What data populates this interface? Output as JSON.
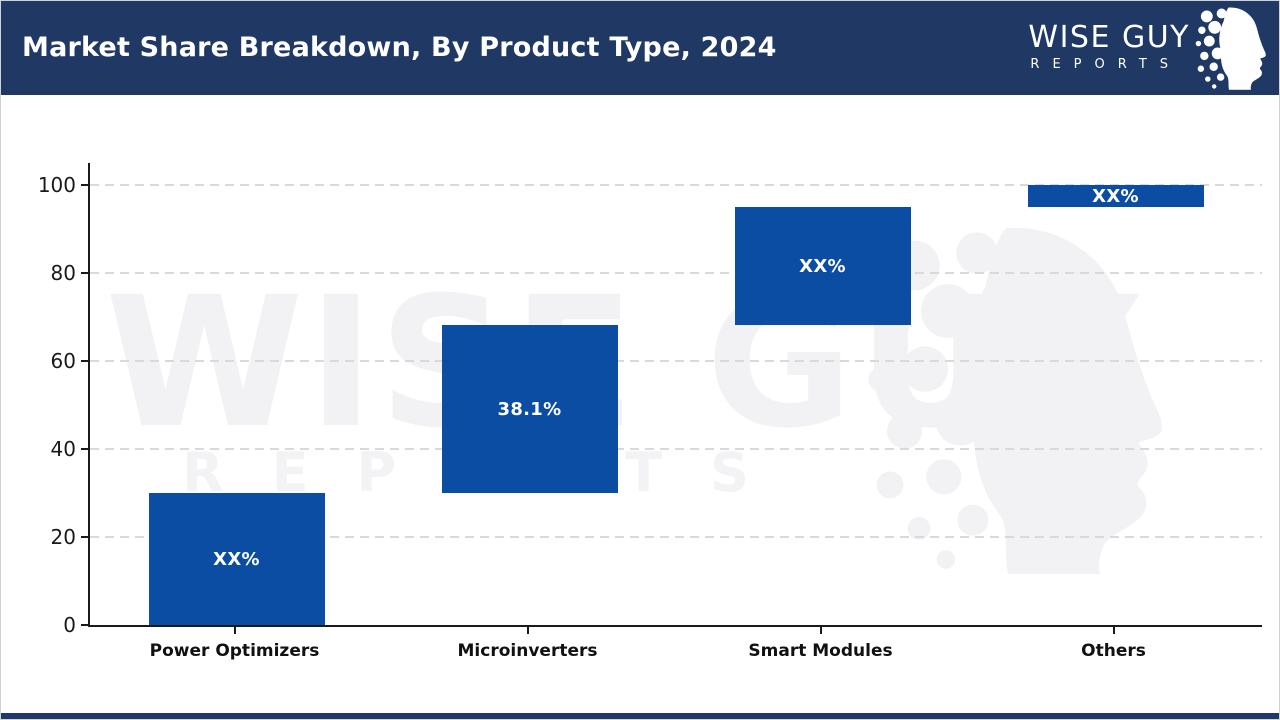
{
  "header": {
    "title": "Market Share Breakdown, By Product Type, 2024",
    "logo": {
      "name": "WISE GUY",
      "sub": "REPORTS"
    }
  },
  "watermark": {
    "name": "WISE GUY",
    "sub": "REPORTS"
  },
  "chart_data": {
    "type": "bar",
    "variant": "waterfall-floating-bars",
    "title": "Market Share Breakdown, By Product Type, 2024",
    "categories": [
      "Power Optimizers",
      "Microinverters",
      "Smart Modules",
      "Others"
    ],
    "series": [
      {
        "name": "Power Optimizers",
        "start": 0,
        "end": 30,
        "value": 30,
        "label": "XX%"
      },
      {
        "name": "Microinverters",
        "start": 30,
        "end": 68.1,
        "value": 38.1,
        "label": "38.1%"
      },
      {
        "name": "Smart Modules",
        "start": 68.1,
        "end": 95,
        "value": 26.9,
        "label": "XX%"
      },
      {
        "name": "Others",
        "start": 95,
        "end": 100,
        "value": 5,
        "label": "XX%"
      }
    ],
    "yticks": [
      0,
      20,
      40,
      60,
      80,
      100
    ],
    "ylim": [
      0,
      105
    ],
    "xlabel": "",
    "ylabel": "",
    "grid": "horizontal-dashed",
    "legend": "none",
    "bar_color": "#0b4da2"
  },
  "colors": {
    "header_bg": "#1f3864",
    "footer_bg": "#1f3864",
    "bar": "#0b4da2",
    "grid": "#d9d9d9",
    "axis": "#1a1a1a",
    "watermark": "#f2f2f4",
    "text_on_dark": "#ffffff"
  }
}
